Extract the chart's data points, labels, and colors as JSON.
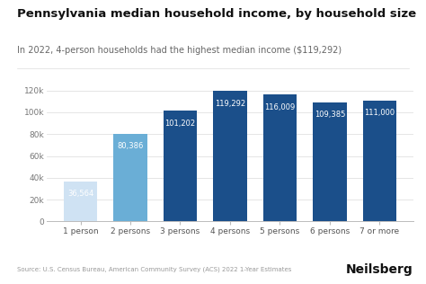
{
  "title": "Pennsylvania median household income, by household size",
  "subtitle": "In 2022, 4-person households had the highest median income ($119,292)",
  "categories": [
    "1 person",
    "2 persons",
    "3 persons",
    "4 persons",
    "5 persons",
    "6 persons",
    "7 or more"
  ],
  "values": [
    36564,
    80386,
    101202,
    119292,
    116009,
    109385,
    111000
  ],
  "bar_colors": [
    "#cfe2f3",
    "#6aaed6",
    "#1b4f8a",
    "#1b4f8a",
    "#1b4f8a",
    "#1b4f8a",
    "#1b4f8a"
  ],
  "value_labels": [
    "36,564",
    "80,386",
    "101,202",
    "119,292",
    "116,009",
    "109,385",
    "111,000"
  ],
  "ylim": [
    0,
    130000
  ],
  "yticks": [
    0,
    20000,
    40000,
    60000,
    80000,
    100000,
    120000
  ],
  "ytick_labels": [
    "0",
    "20k",
    "40k",
    "60k",
    "80k",
    "100k",
    "120k"
  ],
  "source_text": "Source: U.S. Census Bureau, American Community Survey (ACS) 2022 1-Year Estimates",
  "brand_text": "Neilsberg",
  "background_color": "#ffffff",
  "plot_bg_color": "#ffffff",
  "title_fontsize": 9.5,
  "subtitle_fontsize": 7,
  "label_fontsize": 6,
  "tick_fontsize": 6.5,
  "source_fontsize": 5,
  "brand_fontsize": 10,
  "text_color_light": "#ffffff",
  "grid_color": "#e0e0e0"
}
